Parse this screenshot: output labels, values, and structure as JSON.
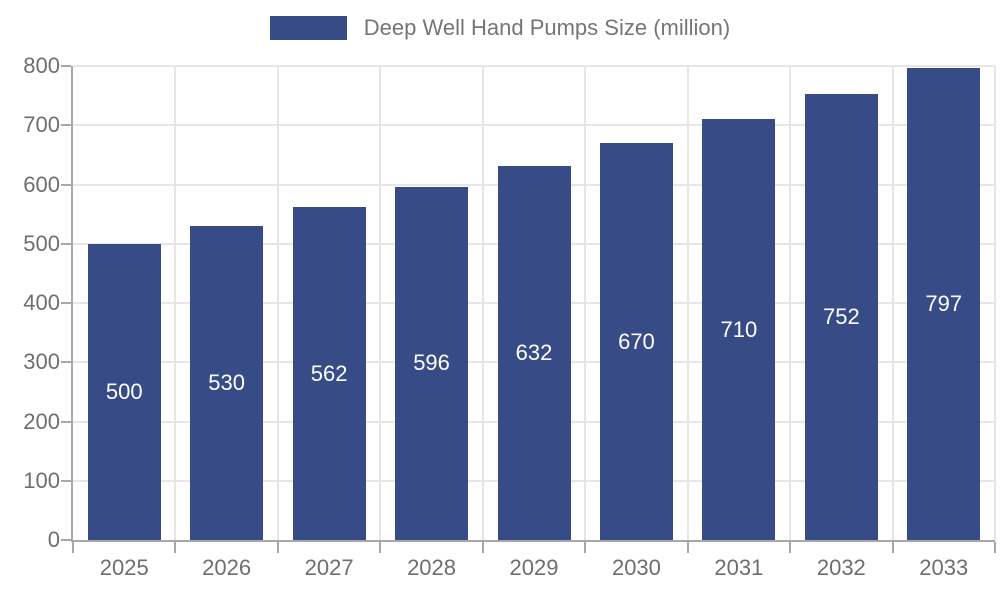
{
  "legend": {
    "label": "Deep Well Hand Pumps Size (million)"
  },
  "colors": {
    "bar": "#374B87",
    "grid": "#e6e6e6",
    "axis": "#a8a8a8",
    "tick_text": "#6e6e6e",
    "legend_text": "#757575",
    "bar_label_text": "#ffffff",
    "background": "#ffffff"
  },
  "chart_data": {
    "type": "bar",
    "title": "Deep Well Hand Pumps Size (million)",
    "series_name": "Deep Well Hand Pumps Size (million)",
    "categories": [
      "2025",
      "2026",
      "2027",
      "2028",
      "2029",
      "2030",
      "2031",
      "2032",
      "2033"
    ],
    "values": [
      500,
      530,
      562,
      596,
      632,
      670,
      710,
      752,
      797
    ],
    "xlabel": "",
    "ylabel": "",
    "ylim": [
      0,
      800
    ],
    "yticks": [
      0,
      100,
      200,
      300,
      400,
      500,
      600,
      700,
      800
    ],
    "grid": true,
    "legend_position": "top-center",
    "value_labels": "inside-center"
  }
}
